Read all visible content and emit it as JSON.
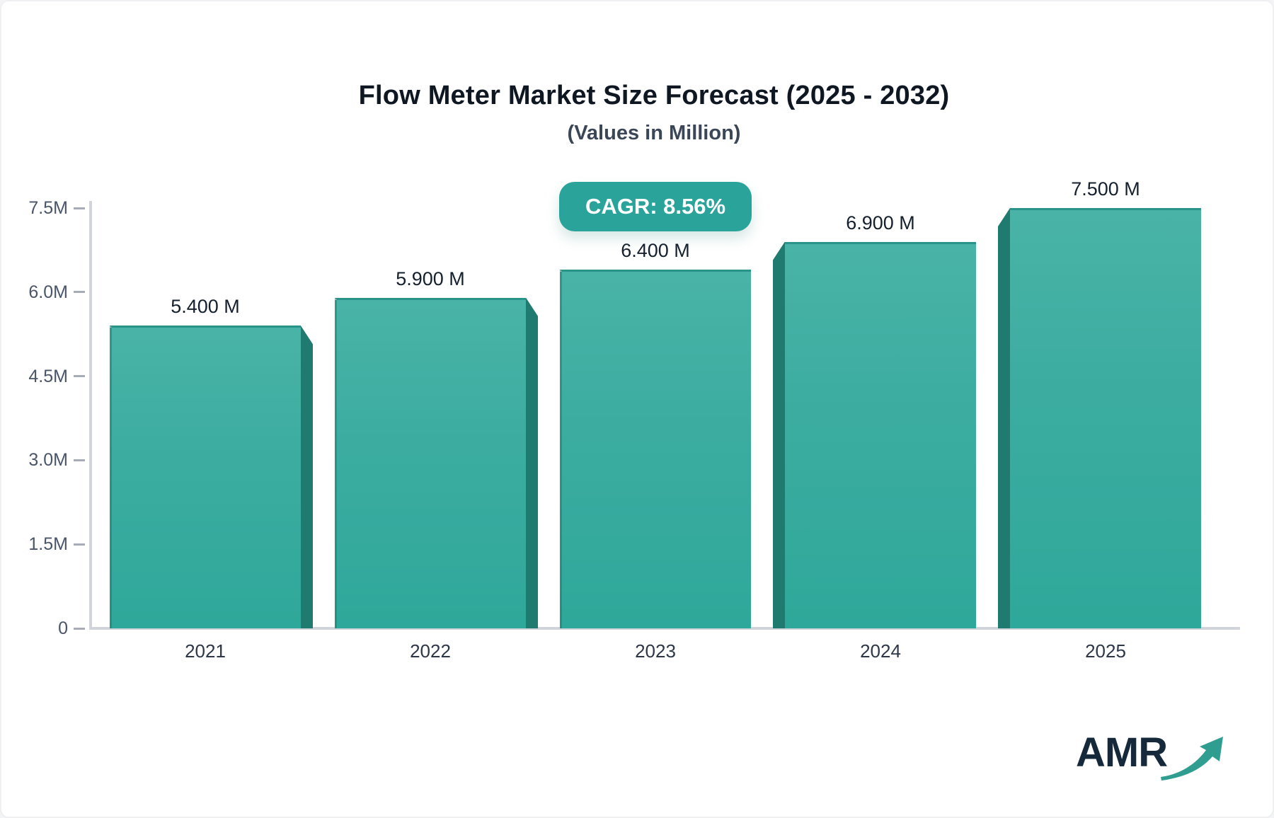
{
  "header": {
    "title": "Flow Meter Market Size Forecast (2025 - 2032)",
    "subtitle": "(Values in Million)"
  },
  "badge": {
    "label": "CAGR: 8.56%",
    "bg": "#2aa39b"
  },
  "chart_data": {
    "type": "bar",
    "categories": [
      "2021",
      "2022",
      "2023",
      "2024",
      "2025"
    ],
    "values": [
      5.4,
      5.9,
      6.4,
      6.9,
      7.5
    ],
    "value_labels": [
      "5.400 M",
      "5.900 M",
      "6.400 M",
      "6.900 M",
      "7.500 M"
    ],
    "title": "Flow Meter Market Size Forecast (2025 - 2032)",
    "subtitle": "(Values in Million)",
    "annotation": "CAGR: 8.56%",
    "xlabel": "",
    "ylabel": "",
    "ylim": [
      0,
      7.5
    ],
    "yticks": [
      0,
      1.5,
      3.0,
      4.5,
      6.0,
      7.5
    ],
    "ytick_labels": [
      "0",
      "1.5M",
      "3.0M",
      "4.5M",
      "6.0M",
      "7.5M"
    ],
    "grid": false,
    "legend": false,
    "bar_color": "#3aaca0",
    "bar_side_color": "#1f7a70",
    "axis_color": "#d1d4da"
  },
  "logo": {
    "text": "AMR"
  }
}
